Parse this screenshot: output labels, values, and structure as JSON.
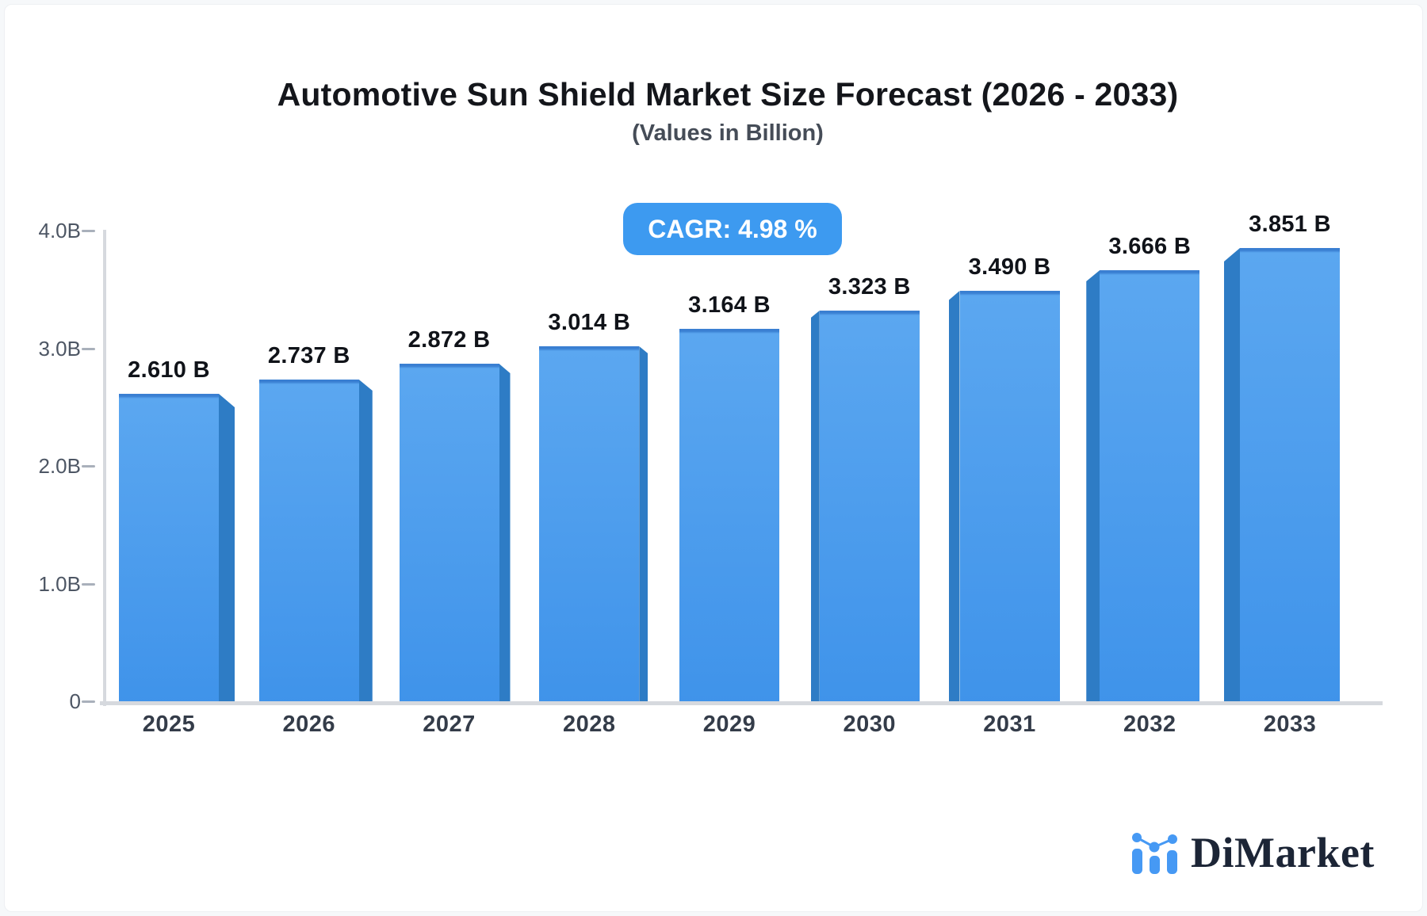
{
  "title": "Automotive Sun Shield Market Size Forecast (2026 - 2033)",
  "subtitle": "(Values in Billion)",
  "badge": {
    "label": "CAGR: 4.98 %"
  },
  "chart_data": {
    "type": "bar",
    "title": "Automotive Sun Shield Market Size Forecast (2026 - 2033)",
    "subtitle": "(Values in Billion)",
    "categories": [
      "2025",
      "2026",
      "2027",
      "2028",
      "2029",
      "2030",
      "2031",
      "2032",
      "2033"
    ],
    "values": [
      2.61,
      2.737,
      2.872,
      3.014,
      3.164,
      3.323,
      3.49,
      3.666,
      3.851
    ],
    "value_labels": [
      "2.610 B",
      "2.737 B",
      "2.872 B",
      "3.014 B",
      "3.164 B",
      "3.323 B",
      "3.490 B",
      "3.666 B",
      "3.851 B"
    ],
    "xlabel": "",
    "ylabel": "",
    "ylim": [
      0,
      4
    ],
    "ytick_values": [
      4,
      3,
      2,
      1,
      0
    ],
    "ytick_labels": [
      "4.0B",
      "3.0B",
      "2.0B",
      "1.0B",
      "0"
    ],
    "grid": false,
    "legend": false,
    "cagr": "4.98 %",
    "colors": {
      "bar_face_top": "#5ba7f0",
      "bar_face_bottom": "#3f93ea",
      "bar_top_edge": "#3a7fd2",
      "bar_side": "#2e7cc5",
      "badge_bg": "#3d9af0",
      "badge_text": "#ffffff",
      "axis_line": "#d6d9de",
      "tick_dash": "#a9b0bb",
      "value_label": "#101319",
      "x_label": "#343c49",
      "y_label": "#4d5664",
      "logo_blue": "#4699f4",
      "logo_navy": "#1c2536"
    }
  },
  "logo": {
    "text": "DiMarket"
  }
}
